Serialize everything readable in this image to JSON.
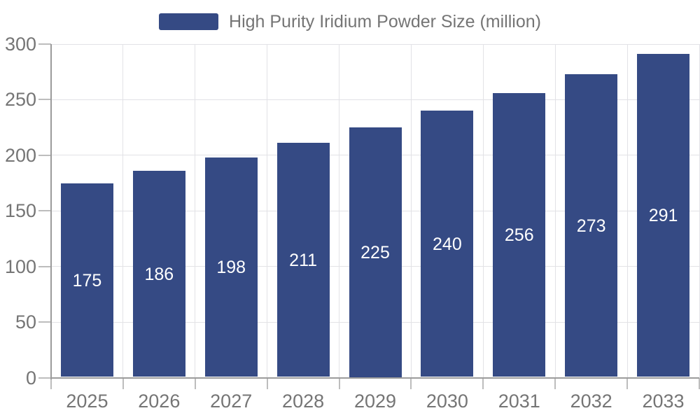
{
  "chart_data": {
    "type": "bar",
    "title": "High Purity Iridium Powder Size (million)",
    "categories": [
      "2025",
      "2026",
      "2027",
      "2028",
      "2029",
      "2030",
      "2031",
      "2032",
      "2033"
    ],
    "values": [
      175,
      186,
      198,
      211,
      225,
      240,
      256,
      273,
      291
    ],
    "xlabel": "",
    "ylabel": "",
    "ylim": [
      0,
      300
    ],
    "yticks": [
      0,
      50,
      100,
      150,
      200,
      250,
      300
    ],
    "grid": true,
    "legend_position": "top-center",
    "bar_color": "#354A84",
    "value_label_color": "#ffffff",
    "axis_text_color": "#757575",
    "legend_text_color": "#757575",
    "grid_color": "#e2e2e6",
    "axis_line_color": "#9b9b9b",
    "tick_color": "#bdbdbd",
    "background_color": "#ffffff"
  }
}
